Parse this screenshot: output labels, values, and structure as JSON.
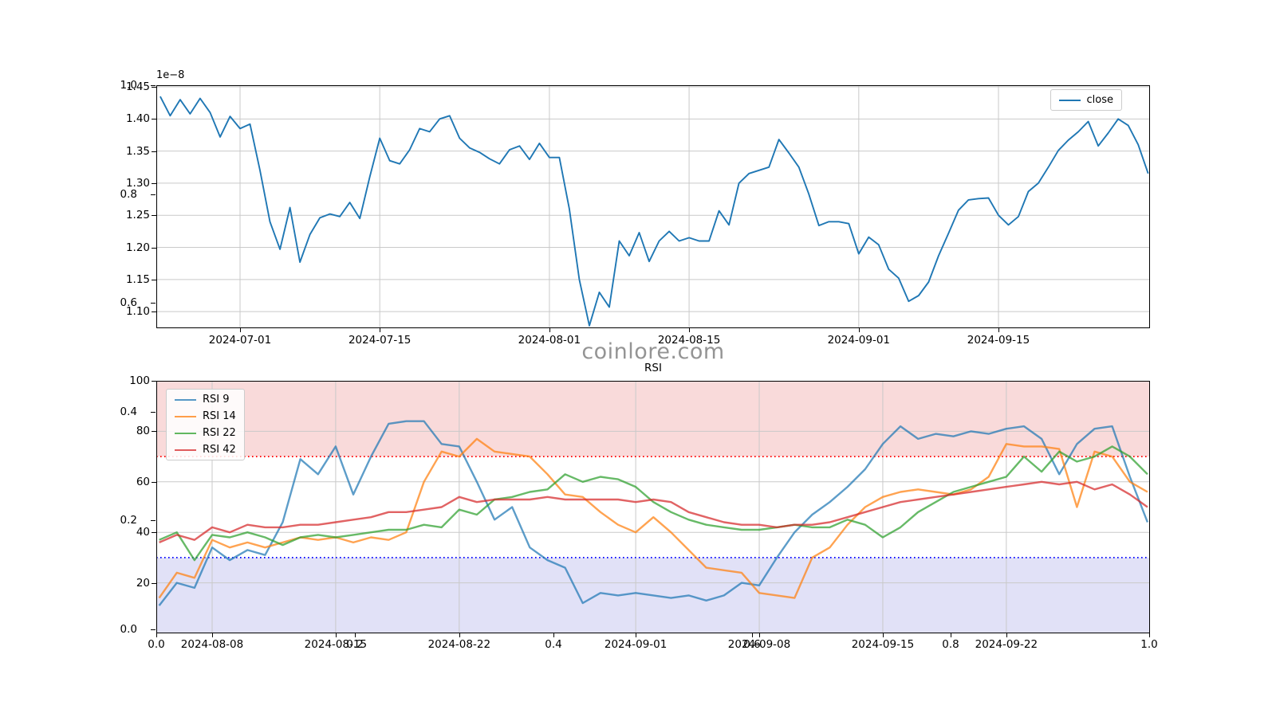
{
  "watermark": "coinlore.com",
  "top_chart": {
    "offset_label": "1e−8",
    "y_ticks": [
      "1.45",
      "1.40",
      "1.35",
      "1.30",
      "1.25",
      "1.20",
      "1.15",
      "1.10"
    ],
    "x_ticks": [
      "2024-07-01",
      "2024-07-15",
      "2024-08-01",
      "2024-08-15",
      "2024-09-01",
      "2024-09-15"
    ]
  },
  "bottom_chart": {
    "title": "RSI",
    "y_ticks": [
      "100",
      "80",
      "60",
      "40",
      "20"
    ],
    "x_ticks": [
      "2024-08-08",
      "2024-08-15",
      "2024-08-22",
      "2024-09-01",
      "2024-09-08",
      "2024-09-15",
      "2024-09-22"
    ],
    "overbought_level": 70,
    "oversold_level": 30,
    "band_colors": {
      "overbought": "#f9dada",
      "oversold": "#e1e1f7"
    },
    "threshold_colors": {
      "overbought": "#ff0000",
      "oversold": "#0000ff"
    }
  },
  "overlay_axis": {
    "x_ticks": [
      "0.0",
      "0.2",
      "0.4",
      "0.6",
      "0.8",
      "1.0"
    ],
    "y_ticks": [
      "1.0",
      "0.8",
      "0.6",
      "0.4",
      "0.2",
      "0.0"
    ]
  },
  "chart_data": [
    {
      "type": "line",
      "name": "close-price",
      "title": "",
      "unit_multiplier": "1e-8",
      "ylim": [
        1.0745,
        1.4525
      ],
      "grid": true,
      "legend_position": "upper right",
      "dates": [
        "2024-06-23",
        "2024-06-24",
        "2024-06-25",
        "2024-06-26",
        "2024-06-27",
        "2024-06-28",
        "2024-06-29",
        "2024-06-30",
        "2024-07-01",
        "2024-07-02",
        "2024-07-03",
        "2024-07-04",
        "2024-07-05",
        "2024-07-06",
        "2024-07-07",
        "2024-07-08",
        "2024-07-09",
        "2024-07-10",
        "2024-07-11",
        "2024-07-12",
        "2024-07-13",
        "2024-07-14",
        "2024-07-15",
        "2024-07-16",
        "2024-07-17",
        "2024-07-18",
        "2024-07-19",
        "2024-07-20",
        "2024-07-21",
        "2024-07-22",
        "2024-07-23",
        "2024-07-24",
        "2024-07-25",
        "2024-07-26",
        "2024-07-27",
        "2024-07-28",
        "2024-07-29",
        "2024-07-30",
        "2024-07-31",
        "2024-08-01",
        "2024-08-02",
        "2024-08-03",
        "2024-08-04",
        "2024-08-05",
        "2024-08-06",
        "2024-08-07",
        "2024-08-08",
        "2024-08-09",
        "2024-08-10",
        "2024-08-11",
        "2024-08-12",
        "2024-08-13",
        "2024-08-14",
        "2024-08-15",
        "2024-08-16",
        "2024-08-17",
        "2024-08-18",
        "2024-08-19",
        "2024-08-20",
        "2024-08-21",
        "2024-08-22",
        "2024-08-23",
        "2024-08-24",
        "2024-08-25",
        "2024-08-26",
        "2024-08-27",
        "2024-08-28",
        "2024-08-29",
        "2024-08-30",
        "2024-08-31",
        "2024-09-01",
        "2024-09-02",
        "2024-09-03",
        "2024-09-04",
        "2024-09-05",
        "2024-09-06",
        "2024-09-07",
        "2024-09-08",
        "2024-09-09",
        "2024-09-10",
        "2024-09-11",
        "2024-09-12",
        "2024-09-13",
        "2024-09-14",
        "2024-09-15",
        "2024-09-16",
        "2024-09-17",
        "2024-09-18",
        "2024-09-19",
        "2024-09-20",
        "2024-09-21",
        "2024-09-22",
        "2024-09-23",
        "2024-09-24",
        "2024-09-25",
        "2024-09-26",
        "2024-09-27",
        "2024-09-28",
        "2024-09-29",
        "2024-09-30"
      ],
      "series": [
        {
          "name": "close",
          "color": "#1f77b4",
          "values": [
            1.435,
            1.405,
            1.43,
            1.408,
            1.432,
            1.41,
            1.372,
            1.404,
            1.385,
            1.392,
            1.32,
            1.24,
            1.197,
            1.262,
            1.177,
            1.22,
            1.246,
            1.252,
            1.248,
            1.27,
            1.245,
            1.31,
            1.37,
            1.335,
            1.33,
            1.352,
            1.385,
            1.38,
            1.4,
            1.405,
            1.37,
            1.355,
            1.348,
            1.338,
            1.33,
            1.352,
            1.358,
            1.337,
            1.362,
            1.34,
            1.34,
            1.26,
            1.15,
            1.078,
            1.13,
            1.107,
            1.21,
            1.187,
            1.223,
            1.178,
            1.21,
            1.225,
            1.21,
            1.215,
            1.21,
            1.21,
            1.257,
            1.235,
            1.3,
            1.315,
            1.32,
            1.325,
            1.368,
            1.347,
            1.325,
            1.283,
            1.234,
            1.24,
            1.24,
            1.237,
            1.19,
            1.216,
            1.204,
            1.166,
            1.152,
            1.116,
            1.125,
            1.146,
            1.187,
            1.222,
            1.258,
            1.274,
            1.276,
            1.277,
            1.25,
            1.235,
            1.248,
            1.287,
            1.3,
            1.325,
            1.351,
            1.367,
            1.38,
            1.396,
            1.358,
            1.378,
            1.4,
            1.39,
            1.36,
            1.315
          ]
        }
      ]
    },
    {
      "type": "line",
      "name": "rsi",
      "title": "RSI",
      "ylim": [
        0,
        100
      ],
      "grid": true,
      "legend_position": "upper left",
      "bands": [
        {
          "from": 70,
          "to": 100,
          "color": "#f9dada"
        },
        {
          "from": 0,
          "to": 30,
          "color": "#e1e1f7"
        }
      ],
      "threshold_lines": [
        {
          "value": 70,
          "color": "#ff0000",
          "style": "dotted"
        },
        {
          "value": 30,
          "color": "#0000ff",
          "style": "dotted"
        }
      ],
      "dates": [
        "2024-08-05",
        "2024-08-06",
        "2024-08-07",
        "2024-08-08",
        "2024-08-09",
        "2024-08-10",
        "2024-08-11",
        "2024-08-12",
        "2024-08-13",
        "2024-08-14",
        "2024-08-15",
        "2024-08-16",
        "2024-08-17",
        "2024-08-18",
        "2024-08-19",
        "2024-08-20",
        "2024-08-21",
        "2024-08-22",
        "2024-08-23",
        "2024-08-24",
        "2024-08-25",
        "2024-08-26",
        "2024-08-27",
        "2024-08-28",
        "2024-08-29",
        "2024-08-30",
        "2024-08-31",
        "2024-09-01",
        "2024-09-02",
        "2024-09-03",
        "2024-09-04",
        "2024-09-05",
        "2024-09-06",
        "2024-09-07",
        "2024-09-08",
        "2024-09-09",
        "2024-09-10",
        "2024-09-11",
        "2024-09-12",
        "2024-09-13",
        "2024-09-14",
        "2024-09-15",
        "2024-09-16",
        "2024-09-17",
        "2024-09-18",
        "2024-09-19",
        "2024-09-20",
        "2024-09-21",
        "2024-09-22",
        "2024-09-23",
        "2024-09-24",
        "2024-09-25",
        "2024-09-26",
        "2024-09-27",
        "2024-09-28",
        "2024-09-29",
        "2024-09-30"
      ],
      "series": [
        {
          "name": "RSI 9",
          "color": "#1f77b4",
          "values": [
            11,
            20,
            18,
            34,
            29,
            33,
            31,
            44,
            69,
            63,
            74,
            55,
            70,
            83,
            84,
            84,
            75,
            74,
            60,
            45,
            50,
            34,
            29,
            26,
            12,
            16,
            15,
            16,
            15,
            14,
            15,
            13,
            15,
            20,
            19,
            30,
            40,
            47,
            52,
            58,
            65,
            75,
            82,
            77,
            79,
            78,
            80,
            79,
            81,
            82,
            77,
            63,
            75,
            81,
            82,
            62,
            44
          ]
        },
        {
          "name": "RSI 14",
          "color": "#ff7f0e",
          "values": [
            14,
            24,
            22,
            37,
            34,
            36,
            34,
            36,
            38,
            37,
            38,
            36,
            38,
            37,
            40,
            60,
            72,
            70,
            77,
            72,
            71,
            70,
            63,
            55,
            54,
            48,
            43,
            40,
            46,
            40,
            33,
            26,
            25,
            24,
            16,
            15,
            14,
            30,
            34,
            43,
            50,
            54,
            56,
            57,
            56,
            55,
            57,
            62,
            75,
            74,
            74,
            73,
            50,
            72,
            70,
            60,
            56
          ]
        },
        {
          "name": "RSI 22",
          "color": "#2ca02c",
          "values": [
            37,
            40,
            29,
            39,
            38,
            40,
            38,
            35,
            38,
            39,
            38,
            39,
            40,
            41,
            41,
            43,
            42,
            49,
            47,
            53,
            54,
            56,
            57,
            63,
            60,
            62,
            61,
            58,
            52,
            48,
            45,
            43,
            42,
            41,
            41,
            42,
            43,
            42,
            42,
            45,
            43,
            38,
            42,
            48,
            52,
            56,
            58,
            60,
            62,
            70,
            64,
            72,
            68,
            70,
            74,
            70,
            63
          ]
        },
        {
          "name": "RSI 42",
          "color": "#d62728",
          "values": [
            36,
            39,
            37,
            42,
            40,
            43,
            42,
            42,
            43,
            43,
            44,
            45,
            46,
            48,
            48,
            49,
            50,
            54,
            52,
            53,
            53,
            53,
            54,
            53,
            53,
            53,
            53,
            52,
            53,
            52,
            48,
            46,
            44,
            43,
            43,
            42,
            43,
            43,
            44,
            46,
            48,
            50,
            52,
            53,
            54,
            55,
            56,
            57,
            58,
            59,
            60,
            59,
            60,
            57,
            59,
            55,
            50
          ]
        }
      ]
    }
  ]
}
